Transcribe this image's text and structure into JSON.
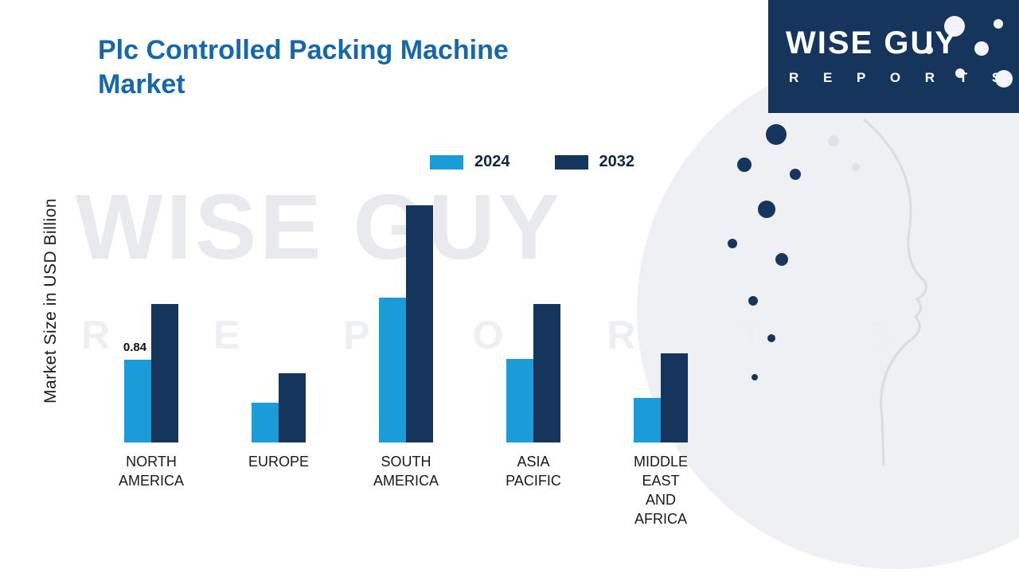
{
  "header": {
    "title": "Plc Controlled Packing Machine Market",
    "title_color": "#1568ac"
  },
  "logo": {
    "line1": "WISE GUY",
    "line2": "R E P O R T S",
    "bg_color": "#16355d"
  },
  "watermark": {
    "line1": "WISE GUY",
    "line2": "R E P O R T S"
  },
  "chart_data": {
    "type": "bar",
    "title": "Plc Controlled Packing Machine Market",
    "xlabel": "",
    "ylabel": "Market Size in USD Billion",
    "unit": "USD Billion",
    "ylim": [
      0,
      2.5
    ],
    "grid": false,
    "legend_position": "top",
    "categories": [
      "North America",
      "Europe",
      "South America",
      "Asia Pacific",
      "Middle East and Africa"
    ],
    "category_label_lines": [
      [
        "NORTH",
        "AMERICA"
      ],
      [
        "EUROPE"
      ],
      [
        "SOUTH",
        "AMERICA"
      ],
      [
        "ASIA",
        "PACIFIC"
      ],
      [
        "MIDDLE",
        "EAST",
        "AND",
        "AFRICA"
      ]
    ],
    "series": [
      {
        "name": "2024",
        "color": "#1b9bd8",
        "values": [
          0.84,
          0.4,
          1.47,
          0.85,
          0.45
        ],
        "value_labels": [
          "0.84",
          "",
          "",
          "",
          ""
        ]
      },
      {
        "name": "2032",
        "color": "#16355d",
        "values": [
          1.4,
          0.7,
          2.4,
          1.4,
          0.9
        ],
        "value_labels": [
          "",
          "",
          "",
          "",
          ""
        ]
      }
    ]
  },
  "colors": {
    "accent_blue": "#1b9bd8",
    "navy": "#16355d",
    "title_blue": "#1568ac",
    "watermark_gray": "#e8eaee",
    "bg_circle_gray": "#eef0f3"
  }
}
